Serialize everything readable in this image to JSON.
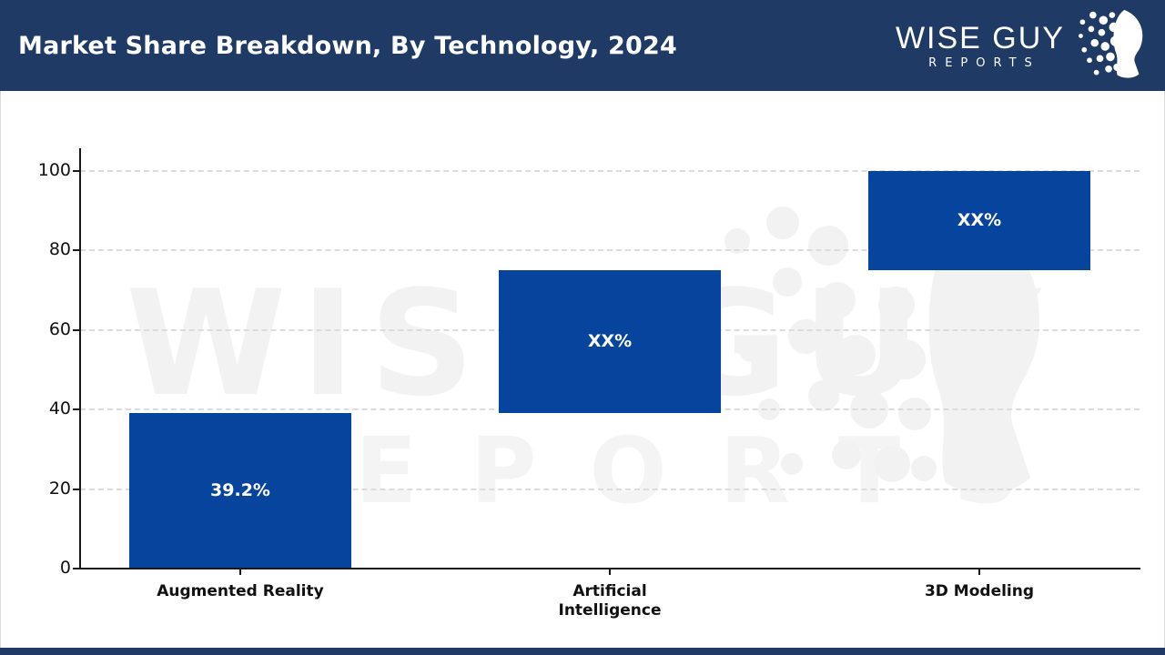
{
  "header": {
    "title": "Market Share Breakdown, By Technology, 2024",
    "logo": {
      "line1": "WISE GUY",
      "line2": "REPORTS"
    }
  },
  "watermark": {
    "line1": "WISE GUY",
    "line2": "REPORTS"
  },
  "chart_data": {
    "type": "bar",
    "subtype": "floating-waterfall",
    "title": "Market Share Breakdown, By Technology, 2024",
    "categories": [
      "Augmented Reality",
      "Artificial\nIntelligence",
      "3D Modeling"
    ],
    "segments": [
      {
        "category": "Augmented Reality",
        "start": 0,
        "end": 39.2,
        "label": "39.2%"
      },
      {
        "category": "Artificial Intelligence",
        "start": 39.2,
        "end": 75,
        "label": "XX%"
      },
      {
        "category": "3D Modeling",
        "start": 75,
        "end": 100,
        "label": "XX%"
      }
    ],
    "yticks": [
      0,
      20,
      40,
      60,
      80,
      100
    ],
    "ylim": [
      0,
      105
    ],
    "xlabel": "",
    "ylabel": "",
    "grid": "horizontal-dashed",
    "legend": "none"
  },
  "colors": {
    "header_navy": "#203A66",
    "bar_blue": "#07449D",
    "gridline": "#DCDCDC",
    "axis": "#1A1A1A",
    "text_dark": "#111111",
    "bar_label_text": "#FFFFFF",
    "watermark_gray": "#F2F2F2"
  }
}
